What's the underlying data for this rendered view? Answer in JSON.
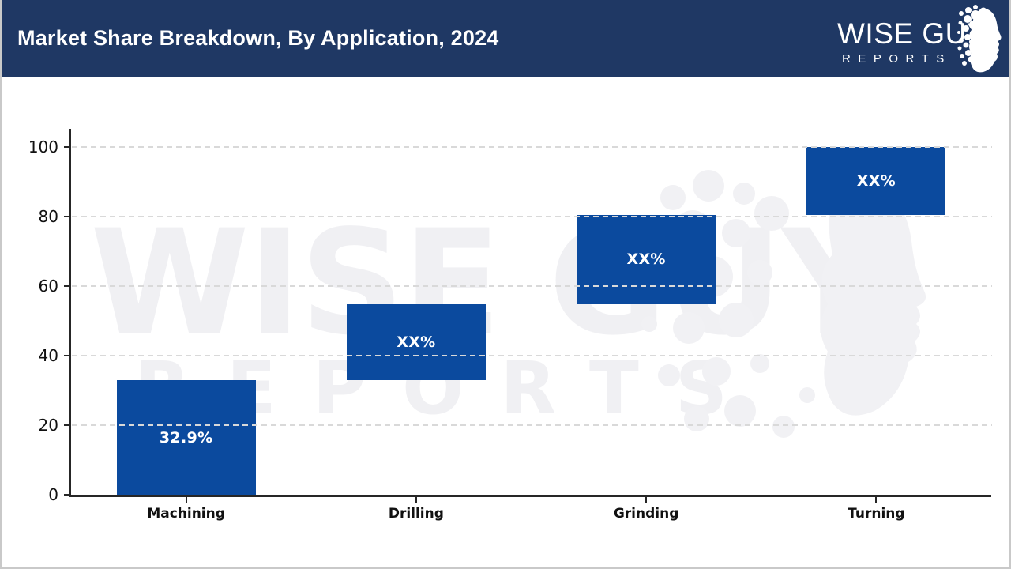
{
  "header": {
    "title": "Market Share Breakdown, By Application, 2024",
    "bg_color": "#1f3864",
    "logo": {
      "line1": "WISE GUY",
      "line2": "REPORTS"
    }
  },
  "watermark": {
    "line1": "WISE GUY",
    "line2": "REPORTS"
  },
  "chart_data": {
    "type": "bar",
    "subtype": "waterfall",
    "title": "Market Share Breakdown, By Application, 2024",
    "xlabel": "",
    "ylabel": "",
    "categories": [
      "Machining",
      "Drilling",
      "Grinding",
      "Turning"
    ],
    "segments": [
      {
        "category": "Machining",
        "start": 0,
        "end": 32.9,
        "label": "32.9%"
      },
      {
        "category": "Drilling",
        "start": 32.9,
        "end": 54.8,
        "label": "XX%"
      },
      {
        "category": "Grinding",
        "start": 54.8,
        "end": 80.5,
        "label": "XX%"
      },
      {
        "category": "Turning",
        "start": 80.5,
        "end": 100,
        "label": "XX%"
      }
    ],
    "y_ticks": [
      0,
      20,
      40,
      60,
      80,
      100
    ],
    "ylim": [
      0,
      100
    ],
    "grid": "horizontal-dashed",
    "legend": "none",
    "bar_color": "#0b4a9e",
    "bar_label_color": "#ffffff",
    "axis_color": "#262626",
    "grid_color": "#d9d9d9"
  }
}
